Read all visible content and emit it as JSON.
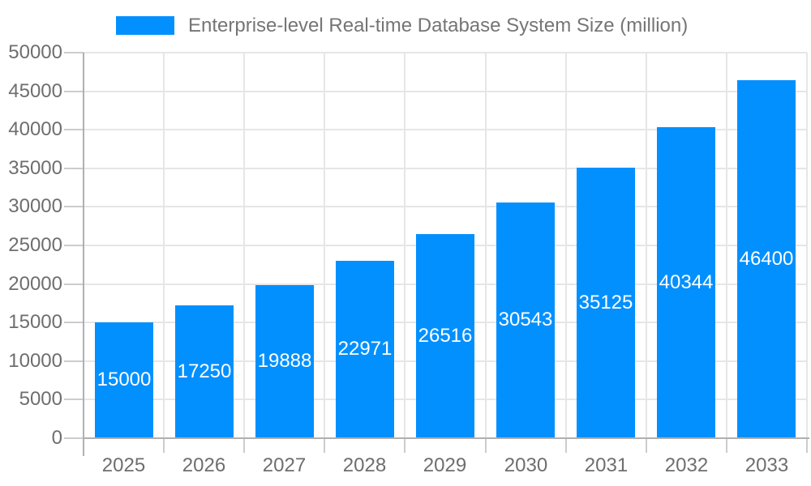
{
  "legend": {
    "series_label": "Enterprise-level Real-time Database System Size (million)"
  },
  "chart_data": {
    "type": "bar",
    "title": "Enterprise-level Real-time Database System Size (million)",
    "categories": [
      "2025",
      "2026",
      "2027",
      "2028",
      "2029",
      "2030",
      "2031",
      "2032",
      "2033"
    ],
    "values": [
      15000,
      17250,
      19888,
      22971,
      26516,
      30543,
      35125,
      40344,
      46400
    ],
    "xlabel": "",
    "ylabel": "",
    "ylim": [
      0,
      50000
    ],
    "ytick_step": 5000,
    "grid": true,
    "legend_position": "top",
    "value_labels": "inside-center",
    "colors": {
      "bar": "#0290ff",
      "value_label": "#ffffff",
      "axis_line": "#b0b0b0",
      "tick": "#cccccc",
      "gridline": "#e6e6e6",
      "axis_text": "#6e6e6e",
      "legend_text": "#757575"
    }
  }
}
